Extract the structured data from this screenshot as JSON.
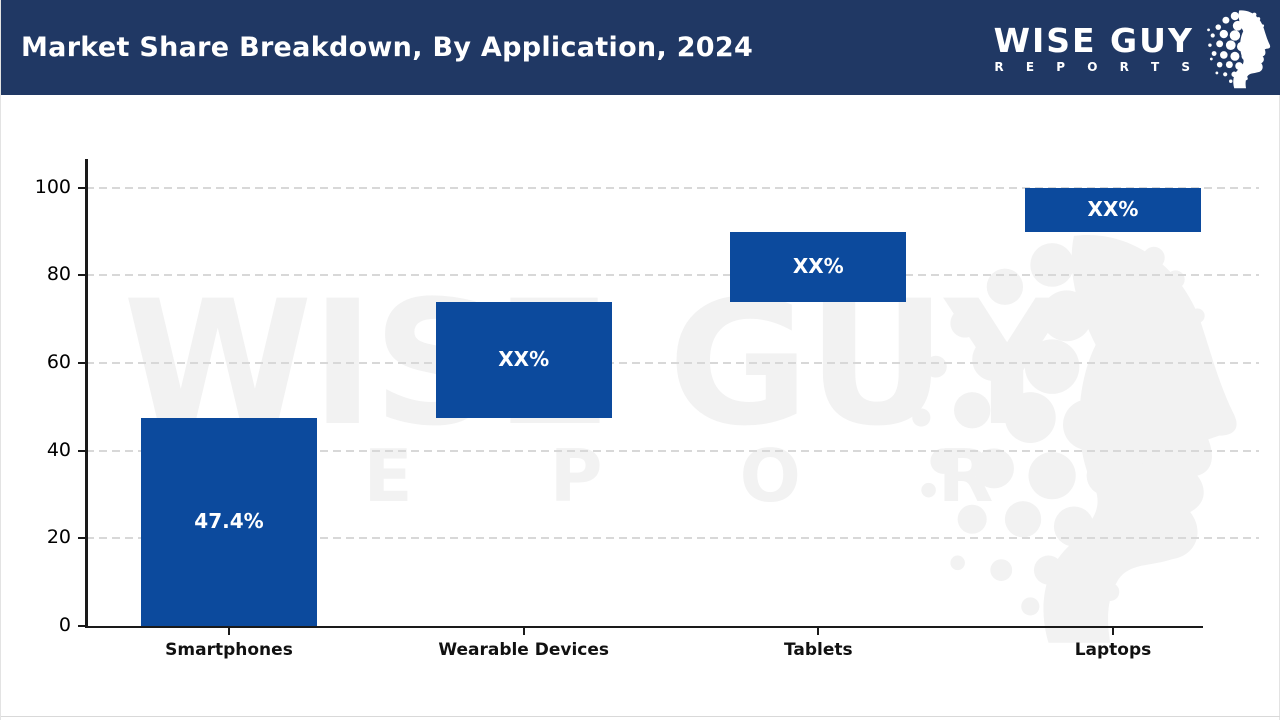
{
  "header": {
    "title": "Market Share Breakdown, By Application, 2024",
    "logo": {
      "line1": "WISE GUY",
      "line2": "R E P O R T S"
    }
  },
  "watermark": {
    "line1": "WISE GUY",
    "line2": "R E P O R T S"
  },
  "colors": {
    "header_bg": "#203864",
    "bar": "#0c4a9d",
    "grid": "#d8d8d8",
    "axis": "#1a1a1a",
    "bar_label": "#ffffff",
    "watermark": "#f2f2f2"
  },
  "chart_data": {
    "type": "bar",
    "subtype": "waterfall-floating-bars",
    "title": "Market Share Breakdown, By Application, 2024",
    "categories": [
      "Smartphones",
      "Wearable Devices",
      "Tablets",
      "Laptops"
    ],
    "segments": [
      {
        "category": "Smartphones",
        "start": 0,
        "end": 47.4,
        "label": "47.4%"
      },
      {
        "category": "Wearable Devices",
        "start": 47.4,
        "end": 74,
        "label": "XX%"
      },
      {
        "category": "Tablets",
        "start": 74,
        "end": 90,
        "label": "XX%"
      },
      {
        "category": "Laptops",
        "start": 90,
        "end": 100,
        "label": "XX%"
      }
    ],
    "xlabel": "",
    "ylabel": "",
    "yticks": [
      0,
      20,
      40,
      60,
      80,
      100
    ],
    "ylim": [
      0,
      106
    ],
    "grid": "horizontal-dashed",
    "legend": "none"
  }
}
